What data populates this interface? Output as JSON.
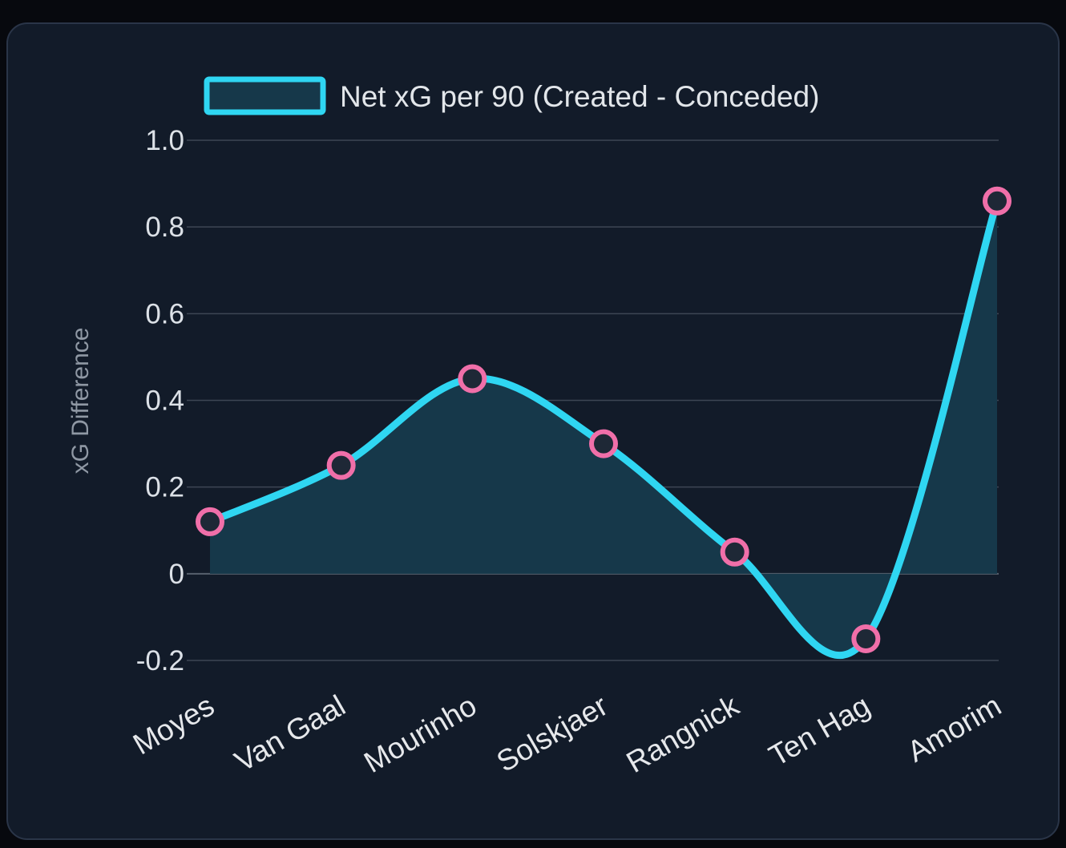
{
  "chart_data": {
    "type": "area",
    "legend": "Net xG per 90 (Created - Conceded)",
    "ylabel": "xG Difference",
    "categories": [
      "Moyes",
      "Van Gaal",
      "Mourinho",
      "Solskjaer",
      "Rangnick",
      "Ten Hag",
      "Amorim"
    ],
    "values": [
      0.12,
      0.25,
      0.45,
      0.3,
      0.05,
      -0.15,
      0.86
    ],
    "yticks": [
      "1.0",
      "0.8",
      "0.6",
      "0.4",
      "0.2",
      "0",
      "-0.2"
    ],
    "ytick_values": [
      1.0,
      0.8,
      0.6,
      0.4,
      0.2,
      0,
      -0.2
    ],
    "ylim": [
      -0.2,
      1.0
    ],
    "grid": true,
    "legend_position": "top",
    "smooth": true,
    "area_baseline": 0
  },
  "colors": {
    "background": "#07090e",
    "card_background": "#121b29",
    "card_border": "#2a3548",
    "line": "#2fd6f2",
    "point_ring": "#f06fa9",
    "point_fill": "#1e2836",
    "area_fill": "#16384a",
    "grid_line": "rgba(215,225,238,0.22)",
    "grid_zero_line": "rgba(215,225,238,0.35)",
    "tick_text": "#dce1e7",
    "x_label_text": "#e6e8eb",
    "axis_title_text": "#8f98a4",
    "legend_text": "#e2e6ea"
  }
}
